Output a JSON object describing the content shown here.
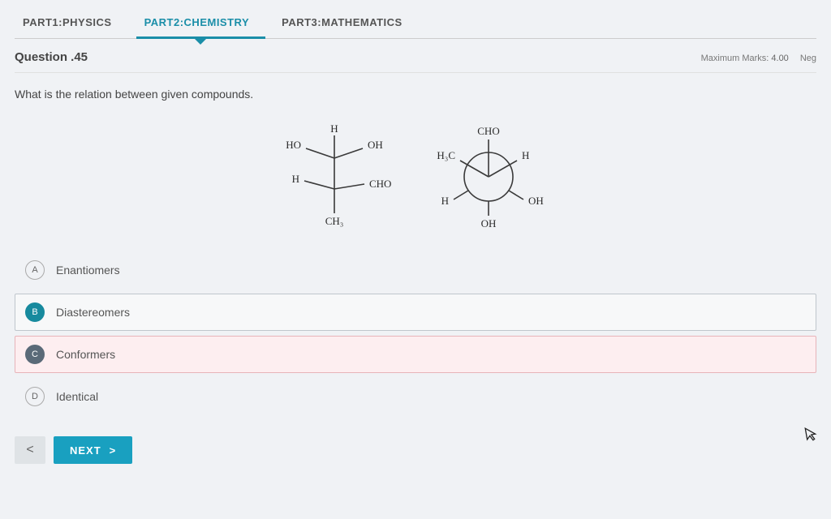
{
  "tabs": [
    {
      "label": "PART1:PHYSICS",
      "active": false
    },
    {
      "label": "PART2:CHEMISTRY",
      "active": true
    },
    {
      "label": "PART3:MATHEMATICS",
      "active": false
    }
  ],
  "question": {
    "number_label": "Question .45",
    "marks_label": "Maximum Marks:",
    "marks_value": "4.00",
    "neg_label": "Neg",
    "prompt": "What is the relation between given compounds."
  },
  "molecules": {
    "left": {
      "top_axial": "H",
      "top_left": "HO",
      "top_right": "OH",
      "left_eq": "H",
      "right_eq": "CHO",
      "bottom": "CH₃"
    },
    "right": {
      "top_axial": "CHO",
      "top_left": "H₃C",
      "top_right": "H",
      "left_eq": "H",
      "right_eq": "OH",
      "bottom": "OH"
    },
    "stroke": "#3a3a3a",
    "stroke_width": 1.6,
    "text_color": "#2a2a2a",
    "font_size": 13
  },
  "options": {
    "a": {
      "letter": "A",
      "text": "Enantiomers"
    },
    "b": {
      "letter": "B",
      "text": "Diastereomers"
    },
    "c": {
      "letter": "C",
      "text": "Conformers"
    },
    "d": {
      "letter": "D",
      "text": "Identical"
    }
  },
  "nav": {
    "prev_glyph": "<",
    "next_label": "NEXT",
    "next_glyph": ">"
  },
  "colors": {
    "accent": "#1a8ea8",
    "next_btn": "#19a0c0",
    "option_b_border": "#bfc6cc",
    "option_c_border": "#e7b3b8",
    "page_bg": "#f0f2f5"
  }
}
